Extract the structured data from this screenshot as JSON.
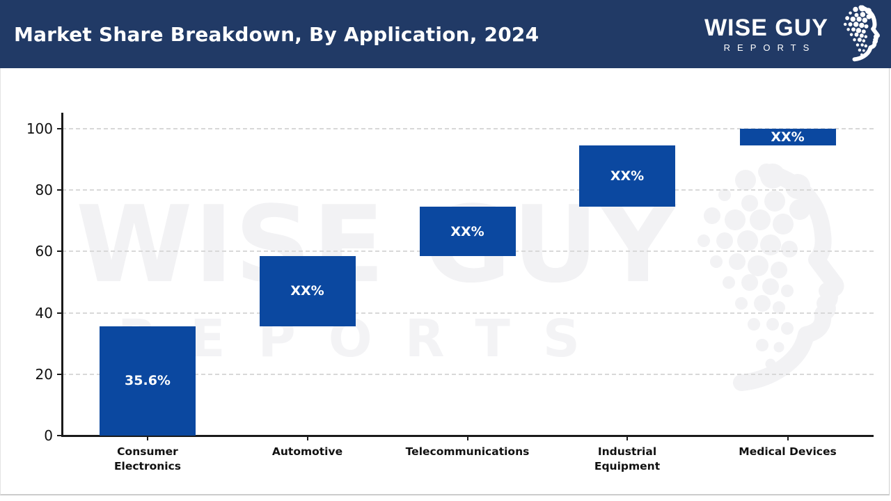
{
  "header": {
    "title": "Market Share Breakdown, By Application, 2024",
    "logo": {
      "line1": "WISE GUY",
      "line2": "REPORTS"
    }
  },
  "watermark": {
    "line1": "WISE GUY",
    "line2": "REPORTS"
  },
  "colors": {
    "header_bg": "#213a66",
    "bar": "#0b48a0",
    "grid": "#d8d8d8",
    "axis": "#1a1a1a",
    "bar_label": "#ffffff",
    "watermark": "#f2f2f4"
  },
  "chart_data": {
    "type": "bar",
    "subtype": "waterfall",
    "title": "Market Share Breakdown, By Application, 2024",
    "categories": [
      "Consumer Electronics",
      "Automotive",
      "Telecommunications",
      "Industrial Equipment",
      "Medical Devices"
    ],
    "category_lines": [
      [
        "Consumer",
        "Electronics"
      ],
      [
        "Automotive"
      ],
      [
        "Telecommunications"
      ],
      [
        "Industrial",
        "Equipment"
      ],
      [
        "Medical Devices"
      ]
    ],
    "bar_starts": [
      0,
      35.6,
      58.6,
      74.5,
      94.6
    ],
    "bar_ends": [
      35.6,
      58.6,
      74.5,
      94.6,
      100
    ],
    "values": [
      35.6,
      23.0,
      15.9,
      20.1,
      5.4
    ],
    "bar_labels": [
      "35.6%",
      "XX%",
      "XX%",
      "XX%",
      "XX%"
    ],
    "unit": "%",
    "ylim": [
      0,
      100
    ],
    "yticks": [
      0,
      20,
      40,
      60,
      80,
      100
    ],
    "ytick_labels": [
      "0",
      "20",
      "40",
      "60",
      "80",
      "100"
    ],
    "grid": "horizontal dashed",
    "legend": "none"
  }
}
